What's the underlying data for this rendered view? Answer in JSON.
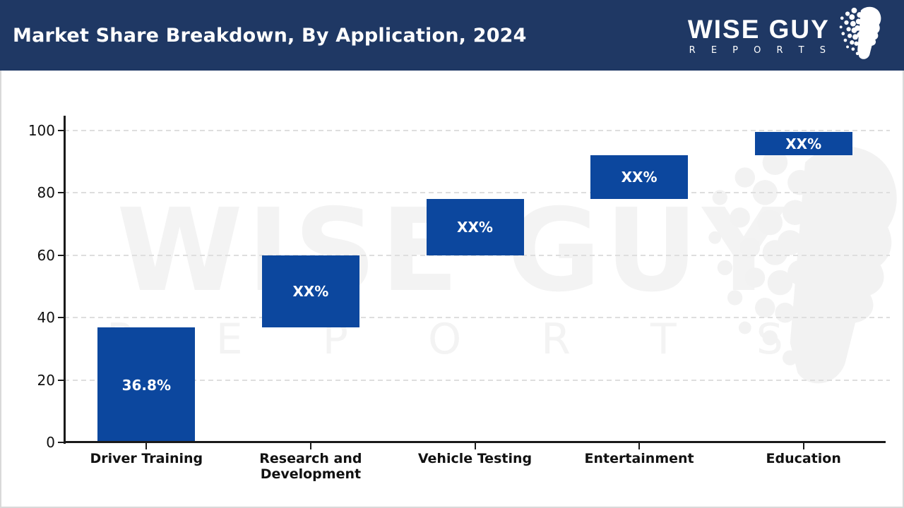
{
  "header": {
    "title": "Market Share Breakdown, By Application, 2024",
    "bg_color": "#1f3864",
    "logo": {
      "line1": "WISE GUY",
      "line2": "R E P O R T S"
    }
  },
  "watermark": {
    "line1": "WISE GUY",
    "line2": "R E P O R T S"
  },
  "chart_data": {
    "type": "bar",
    "subtype": "waterfall",
    "title": "Market Share Breakdown, By Application, 2024",
    "xlabel": "",
    "ylabel": "",
    "categories": [
      "Driver Training",
      "Research and\nDevelopment",
      "Vehicle Testing",
      "Entertainment",
      "Education"
    ],
    "segments": [
      {
        "category": "Driver Training",
        "start": 0,
        "end": 36.8,
        "label": "36.8%"
      },
      {
        "category": "Research and Development",
        "start": 36.8,
        "end": 60,
        "label": "XX%"
      },
      {
        "category": "Vehicle Testing",
        "start": 60,
        "end": 78,
        "label": "XX%"
      },
      {
        "category": "Entertainment",
        "start": 78,
        "end": 92,
        "label": "XX%"
      },
      {
        "category": "Education",
        "start": 92,
        "end": 99.5,
        "label": "XX%"
      }
    ],
    "yticks": [
      0,
      20,
      40,
      60,
      80,
      100
    ],
    "ylim": [
      0,
      105
    ],
    "grid": "horizontal-dashed",
    "legend": "none",
    "bar_color": "#0c479e",
    "bar_label_color": "#ffffff"
  }
}
